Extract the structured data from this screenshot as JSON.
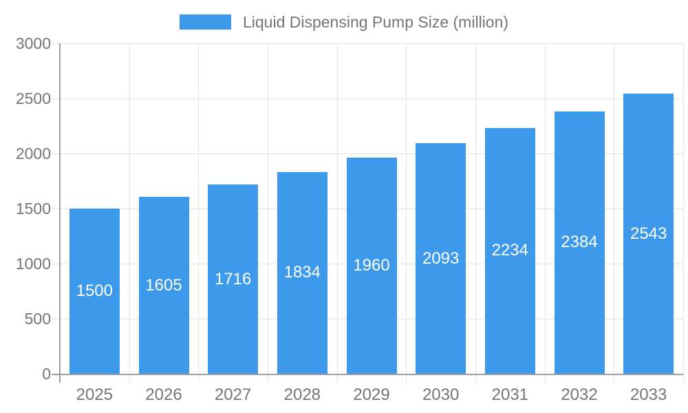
{
  "chart_data": {
    "type": "bar",
    "title": "",
    "legend": {
      "position": "top",
      "entries": [
        {
          "label": "Liquid Dispensing Pump Size (million)",
          "color": "#3D9AEA"
        }
      ]
    },
    "categories": [
      "2025",
      "2026",
      "2027",
      "2028",
      "2029",
      "2030",
      "2031",
      "2032",
      "2033"
    ],
    "series": [
      {
        "name": "Liquid Dispensing Pump Size (million)",
        "values": [
          1500,
          1605,
          1716,
          1834,
          1960,
          2093,
          2234,
          2384,
          2543
        ]
      }
    ],
    "value_labels_shown": true,
    "xlabel": "",
    "ylabel": "",
    "ylim": [
      0,
      3000
    ],
    "yticks": [
      0,
      500,
      1000,
      1500,
      2000,
      2500,
      3000
    ],
    "grid": true,
    "colors": {
      "bar": "#3D9AEA",
      "value_label": "#FFFFFF",
      "axis_text": "#757575",
      "gridline": "#E3E3E3",
      "axis_line": "#9E9E9E"
    }
  }
}
